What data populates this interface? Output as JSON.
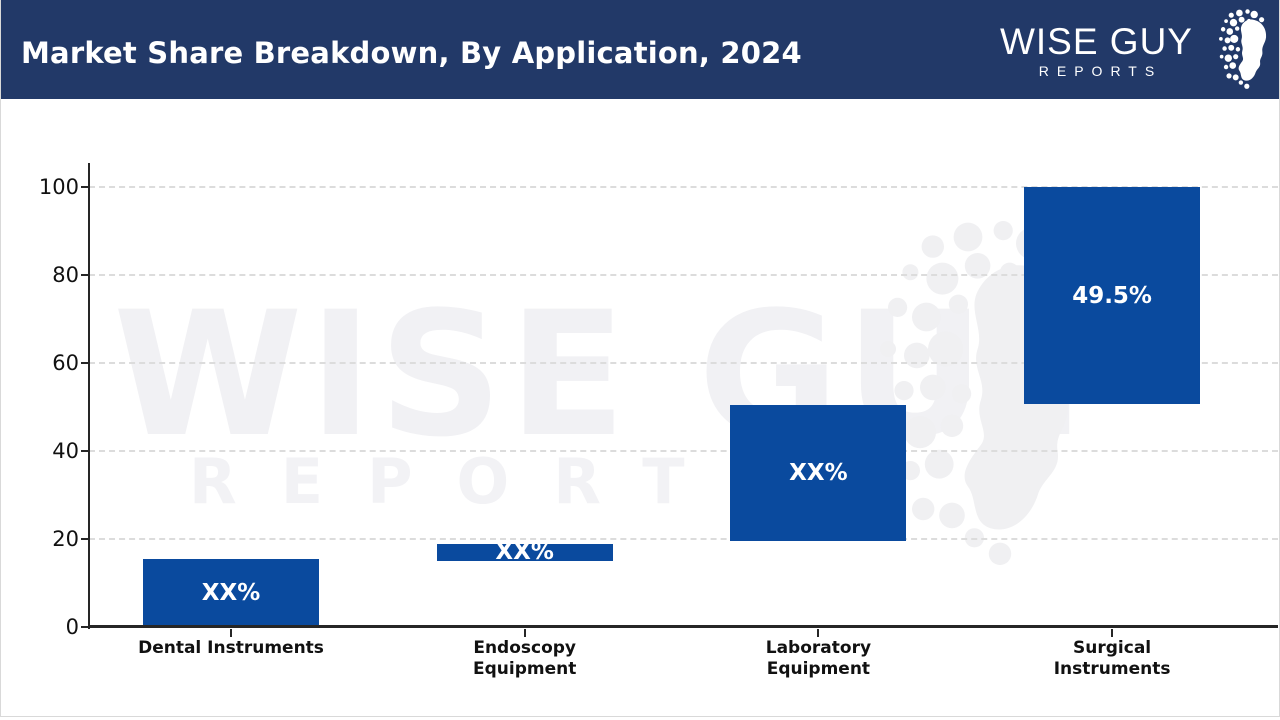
{
  "header": {
    "title": "Market Share Breakdown, By Application, 2024",
    "logo": {
      "wordmark": "WISE GUY",
      "subtext": "REPORTS"
    }
  },
  "watermark": {
    "wordmark": "WISE GUY",
    "subtext": "REPORTS"
  },
  "chart_data": {
    "type": "bar",
    "subtype": "floating-waterfall-segments",
    "title": "Market Share Breakdown, By Application, 2024",
    "xlabel": "",
    "ylabel": "",
    "ylim": [
      0,
      100
    ],
    "yticks": [
      0,
      20,
      40,
      60,
      80,
      100
    ],
    "grid": "horizontal-dashed",
    "legend": "none",
    "categories": [
      "Dental Instruments",
      "Endoscopy\nEquipment",
      "Laboratory\nEquipment",
      "Surgical\nInstruments"
    ],
    "bars": [
      {
        "label": "XX%",
        "start": 0,
        "end": 15.4
      },
      {
        "label": "XX%",
        "start": 15.1,
        "end": 18.8
      },
      {
        "label": "XX%",
        "start": 19.5,
        "end": 50.5
      },
      {
        "label": "49.5%",
        "start": 50.6,
        "end": 100
      }
    ],
    "bar_color": "#0a4a9e"
  },
  "colors": {
    "header_bg": "#223968",
    "bar": "#0a4a9e",
    "axis": "#262626",
    "grid": "#dcdcdc",
    "watermark": "#f1f1f4",
    "page_border": "#d9d9d9",
    "text": "#111111"
  }
}
